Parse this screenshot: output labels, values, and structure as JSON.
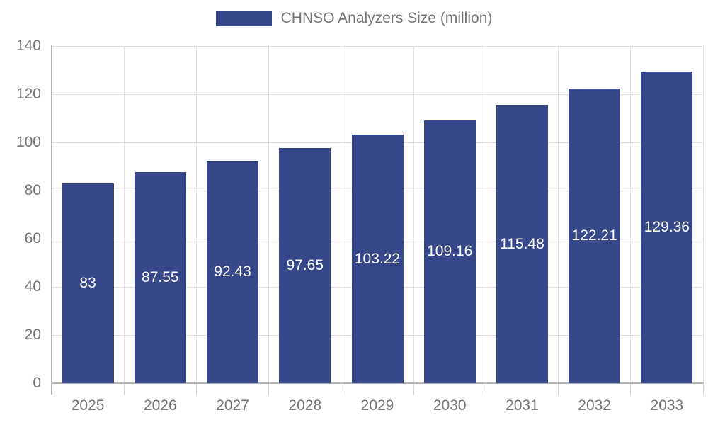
{
  "legend": {
    "label": "CHNSO Analyzers Size (million)"
  },
  "chart_data": {
    "type": "bar",
    "title": "CHNSO Analyzers Size (million)",
    "categories": [
      "2025",
      "2026",
      "2027",
      "2028",
      "2029",
      "2030",
      "2031",
      "2032",
      "2033"
    ],
    "values": [
      83,
      87.55,
      92.43,
      97.65,
      103.22,
      109.16,
      115.48,
      122.21,
      129.36
    ],
    "value_labels": [
      "83",
      "87.55",
      "92.43",
      "97.65",
      "103.22",
      "109.16",
      "115.48",
      "122.21",
      "129.36"
    ],
    "xlabel": "",
    "ylabel": "",
    "ylim": [
      0,
      140
    ],
    "yticks": [
      0,
      20,
      40,
      60,
      80,
      100,
      120,
      140
    ],
    "grid": true,
    "legend_position": "top-center",
    "value_label_position": "inside-center",
    "colors": {
      "bar": "#36488a",
      "value_label_text": "#ffffff",
      "axis_text": "#757575",
      "gridline": "#e0e0e0",
      "axis_line": "#b0b0b0",
      "background": "#ffffff"
    }
  }
}
